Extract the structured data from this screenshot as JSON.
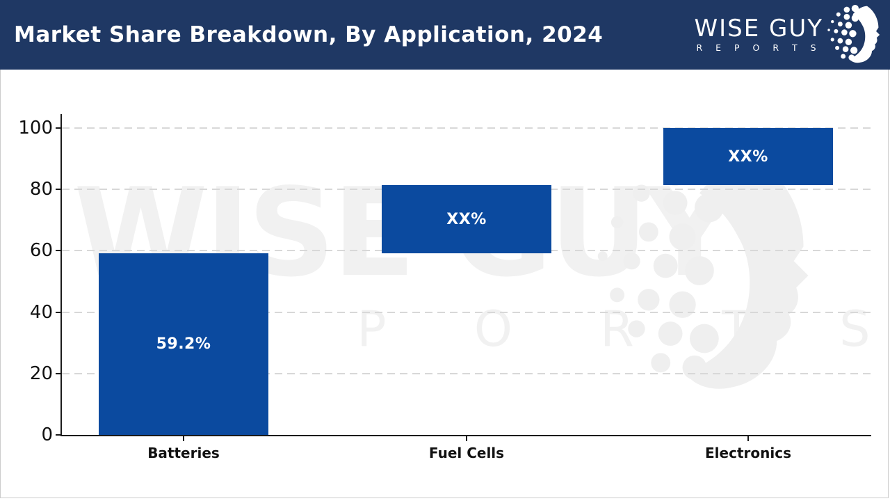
{
  "header": {
    "title": "Market Share Breakdown, By Application, 2024",
    "logo": {
      "line1": "WISE GUY",
      "line2": "R E P O R T S"
    }
  },
  "watermark": {
    "line1": "WISE GUY",
    "line2": "R E P O R T S"
  },
  "chart_data": {
    "type": "bar",
    "variant": "waterfall",
    "title": "Market Share Breakdown, By Application, 2024",
    "categories": [
      "Batteries",
      "Fuel Cells",
      "Electronics"
    ],
    "bars": [
      {
        "category": "Batteries",
        "start": 0,
        "end": 59.2,
        "label": "59.2%"
      },
      {
        "category": "Fuel Cells",
        "start": 59.2,
        "end": 81.3,
        "label": "XX%"
      },
      {
        "category": "Electronics",
        "start": 81.3,
        "end": 100,
        "label": "XX%"
      }
    ],
    "yticks": [
      "0",
      "20",
      "40",
      "60",
      "80",
      "100"
    ],
    "ylim": [
      0,
      104.5
    ],
    "xlabel": "",
    "ylabel": "",
    "grid": "horizontal-dashed",
    "legend": "none"
  },
  "colors": {
    "header_bg": "#1F3864",
    "bar": "#0B4A9F",
    "gridline": "#D8D8D8",
    "axis": "#1A1A1A",
    "watermark": "#F1F1F1",
    "frame_border": "#CCCCCC",
    "bar_label_text": "#FFFFFF",
    "title_text": "#FFFFFF"
  }
}
